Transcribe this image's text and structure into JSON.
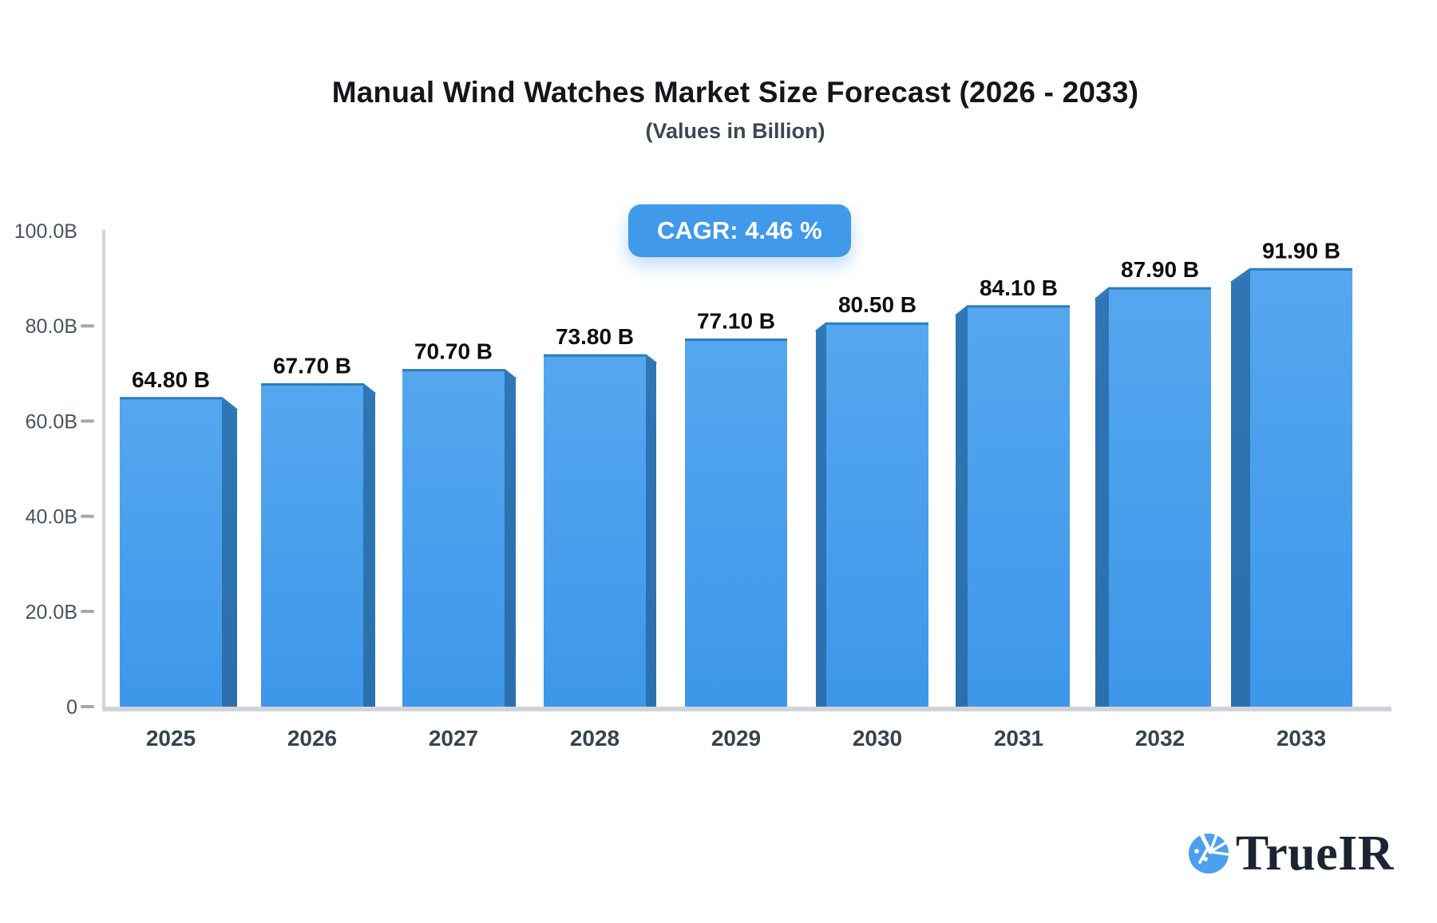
{
  "header": {
    "title": "Manual Wind Watches Market Size Forecast (2026 - 2033)",
    "subtitle": "(Values in Billion)",
    "cagr_badge": "CAGR: 4.46 %"
  },
  "logo": {
    "text": "TrueIR",
    "icon": "pie-chart-icon"
  },
  "colors": {
    "bar_face_top": "#55a7ef",
    "bar_face_bottom": "#3d97ea",
    "bar_side": "#2e76b5",
    "bar_side_dark": "#2b6fad",
    "bar_top_edge": "#2f7cba",
    "axis_line": "#d0d4da",
    "tick_dash": "#a3a8b0",
    "y_label": "#4a525f",
    "x_label": "#39424e",
    "value_label": "#0d0e10",
    "badge_bg": "#4199e9",
    "logo_blue": "#4da0ef"
  },
  "chart_data": {
    "type": "bar",
    "title": "Manual Wind Watches Market Size Forecast (2026 - 2033)",
    "subtitle": "(Values in Billion)",
    "categories": [
      "2025",
      "2026",
      "2027",
      "2028",
      "2029",
      "2030",
      "2031",
      "2032",
      "2033"
    ],
    "values": [
      64.8,
      67.7,
      70.7,
      73.8,
      77.1,
      80.5,
      84.1,
      87.9,
      91.9
    ],
    "bar_labels": [
      "64.80 B",
      "67.70 B",
      "70.70 B",
      "73.80 B",
      "77.10 B",
      "80.50 B",
      "84.10 B",
      "87.90 B",
      "91.90 B"
    ],
    "unit": "Billion",
    "y_tick_labels": [
      "100.0B",
      "80.0B",
      "60.0B",
      "40.0B",
      "20.0B",
      "0"
    ],
    "y_tick_values": [
      100,
      80,
      60,
      40,
      20,
      0
    ],
    "ylim": [
      0,
      100
    ],
    "xlabel": "",
    "ylabel": "",
    "grid": false,
    "legend": false,
    "style": "3d-perspective-bars"
  }
}
